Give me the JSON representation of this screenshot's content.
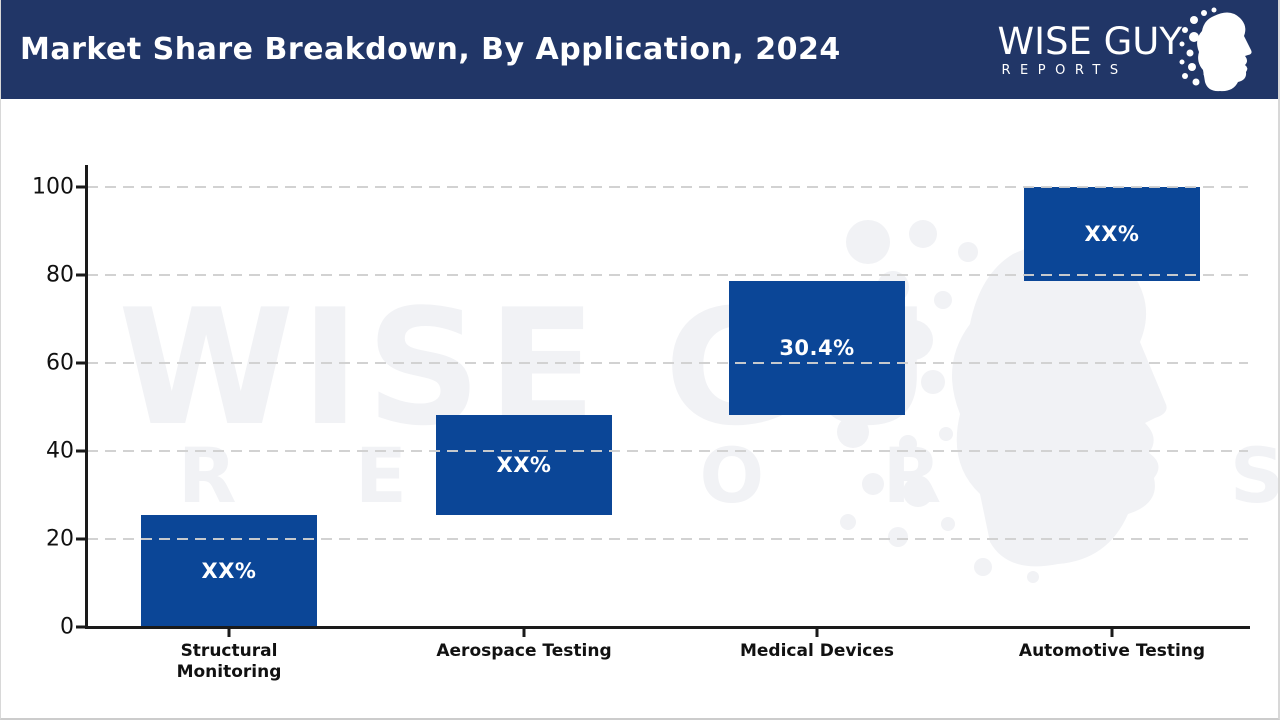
{
  "header": {
    "title": "Market Share Breakdown, By Application, 2024",
    "logo": {
      "name": "WISE GUY",
      "sub": "REPORTS"
    }
  },
  "watermark": {
    "text": "WISE GU",
    "sub": "R E P O R T S"
  },
  "chart_data": {
    "type": "bar",
    "subtype": "floating-waterfall",
    "title": "Market Share Breakdown, By Application, 2024",
    "categories": [
      "Structural Monitoring",
      "Aerospace Testing",
      "Medical Devices",
      "Automotive Testing"
    ],
    "segments": [
      {
        "category": "Structural Monitoring",
        "start": 0,
        "end": 25.5,
        "label": "XX%"
      },
      {
        "category": "Aerospace Testing",
        "start": 25.5,
        "end": 48.2,
        "label": "XX%"
      },
      {
        "category": "Medical Devices",
        "start": 48.2,
        "end": 78.6,
        "label": "30.4%"
      },
      {
        "category": "Automotive Testing",
        "start": 78.6,
        "end": 100,
        "label": "XX%"
      }
    ],
    "yticks": [
      0,
      20,
      40,
      60,
      80,
      100
    ],
    "ylim": [
      0,
      100
    ],
    "grid": {
      "horizontal": true,
      "style": "dashed",
      "color": "#d9d9d9"
    },
    "bar_color": "#0b4697",
    "value_label_color": "#ffffff",
    "axis_color": "#1a1a1a",
    "header_color": "#213667"
  }
}
